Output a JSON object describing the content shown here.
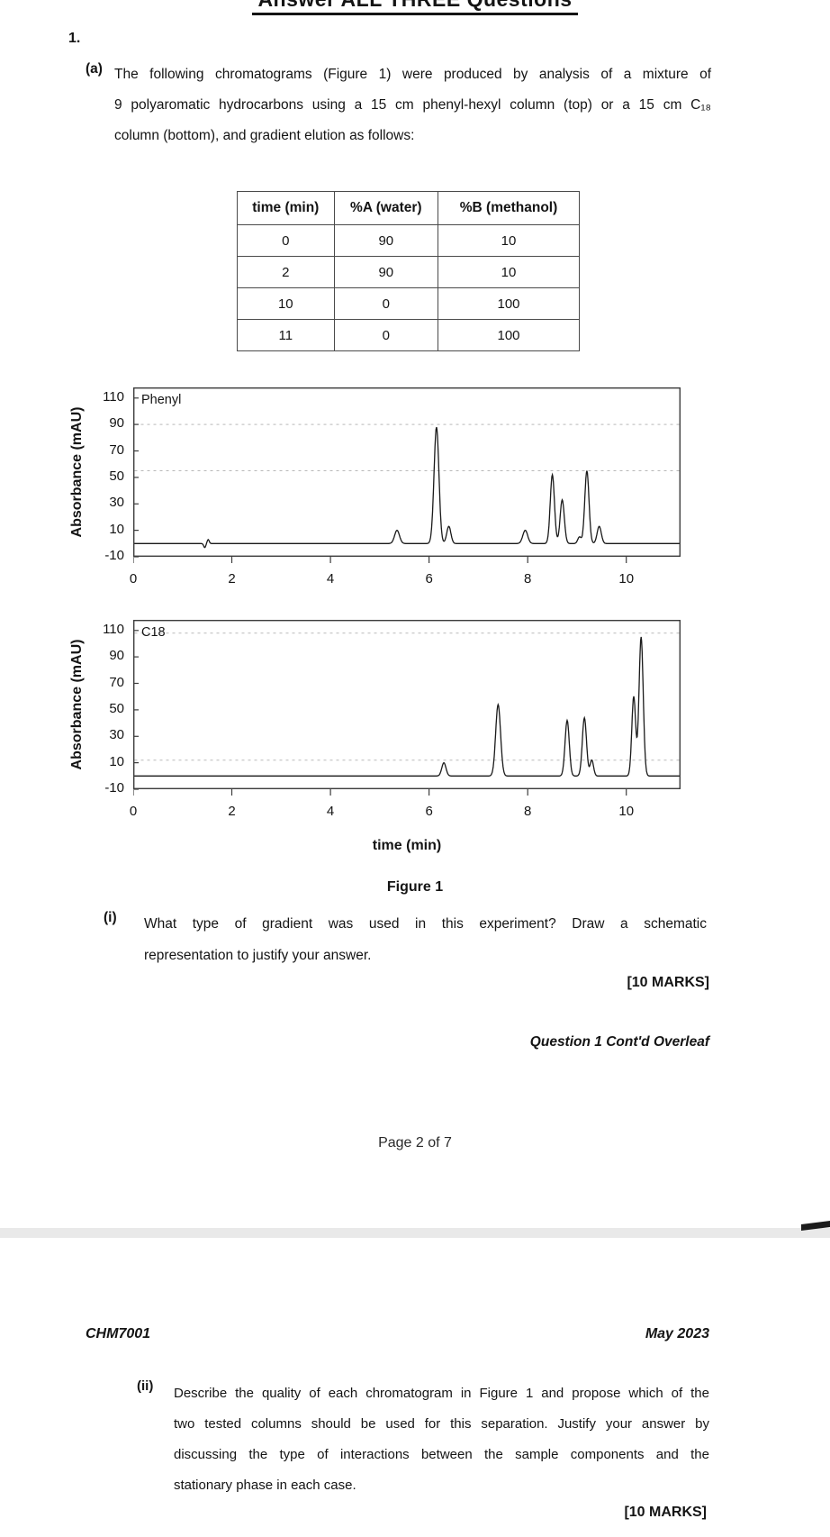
{
  "page": {
    "header_title": "Answer ALL THREE Questions",
    "page_label": "Page 2 of 7",
    "course_code": "CHM7001",
    "exam_date": "May 2023"
  },
  "question1": {
    "number": "1.",
    "part_a": {
      "label": "(a)",
      "lines": [
        "The following chromatograms (Figure 1) were produced by analysis of a mixture of",
        "9 polyaromatic hydrocarbons using a 15 cm phenyl-hexyl column (top) or a 15 cm C₁₈",
        "column (bottom), and gradient elution as follows:"
      ]
    },
    "figure_caption": "Figure 1",
    "part_i": {
      "label": "(i)",
      "lines": [
        "What type of gradient was used in this experiment? Draw a schematic",
        "representation to justify your answer."
      ],
      "marks": "[10 MARKS]"
    },
    "contd_note": "Question 1 Cont'd Overleaf",
    "part_ii": {
      "label": "(ii)",
      "lines": [
        "Describe the quality of each chromatogram in Figure 1 and propose which of the",
        "two tested columns should be used for this separation. Justify your answer by",
        "discussing the type of interactions between the sample components and the",
        "stationary phase in each case."
      ],
      "marks": "[10 MARKS]"
    }
  },
  "gradient_table": {
    "headers": [
      "time (min)",
      "%A (water)",
      "%B (methanol)"
    ],
    "rows": [
      [
        "0",
        "90",
        "10"
      ],
      [
        "2",
        "90",
        "10"
      ],
      [
        "10",
        "0",
        "100"
      ],
      [
        "11",
        "0",
        "100"
      ]
    ]
  },
  "chart_data": [
    {
      "type": "line",
      "title": "Phenyl",
      "ylabel": "Absorbance (mAU)",
      "xlabel": "",
      "xlim": [
        0,
        11.1
      ],
      "ylim": [
        -10,
        118
      ],
      "xticks": [
        0,
        2,
        4,
        6,
        8,
        10
      ],
      "yticks": [
        110,
        90,
        70,
        50,
        30,
        10,
        -10
      ],
      "gridlines_y": [
        90,
        55
      ],
      "grid": "faint dashed",
      "legend_position": "none",
      "baseline_mAU": 0,
      "peaks": [
        {
          "t_min": 1.45,
          "height_mAU": -3,
          "w": 0.03
        },
        {
          "t_min": 1.52,
          "height_mAU": 3,
          "w": 0.03
        },
        {
          "t_min": 5.35,
          "height_mAU": 10,
          "w": 0.07
        },
        {
          "t_min": 6.15,
          "height_mAU": 88,
          "w": 0.07
        },
        {
          "t_min": 6.4,
          "height_mAU": 13,
          "w": 0.06
        },
        {
          "t_min": 7.95,
          "height_mAU": 10,
          "w": 0.07
        },
        {
          "t_min": 8.5,
          "height_mAU": 52,
          "w": 0.06
        },
        {
          "t_min": 8.7,
          "height_mAU": 33,
          "w": 0.06
        },
        {
          "t_min": 9.05,
          "height_mAU": 5,
          "w": 0.05
        },
        {
          "t_min": 9.2,
          "height_mAU": 55,
          "w": 0.06
        },
        {
          "t_min": 9.45,
          "height_mAU": 13,
          "w": 0.06
        }
      ]
    },
    {
      "type": "line",
      "title": "C18",
      "ylabel": "Absorbance (mAU)",
      "xlabel": "time (min)",
      "xlim": [
        0,
        11.1
      ],
      "ylim": [
        -10,
        118
      ],
      "xticks": [
        0,
        2,
        4,
        6,
        8,
        10
      ],
      "yticks": [
        110,
        90,
        70,
        50,
        30,
        10,
        -10
      ],
      "gridlines_y": [
        108,
        12
      ],
      "grid": "faint dashed",
      "legend_position": "none",
      "baseline_mAU": 0,
      "peaks": [
        {
          "t_min": 6.3,
          "height_mAU": 10,
          "w": 0.06
        },
        {
          "t_min": 7.4,
          "height_mAU": 54,
          "w": 0.07
        },
        {
          "t_min": 8.8,
          "height_mAU": 42,
          "w": 0.06
        },
        {
          "t_min": 9.15,
          "height_mAU": 44,
          "w": 0.06
        },
        {
          "t_min": 9.3,
          "height_mAU": 12,
          "w": 0.05
        },
        {
          "t_min": 10.15,
          "height_mAU": 60,
          "w": 0.055
        },
        {
          "t_min": 10.3,
          "height_mAU": 105,
          "w": 0.06
        }
      ]
    }
  ]
}
